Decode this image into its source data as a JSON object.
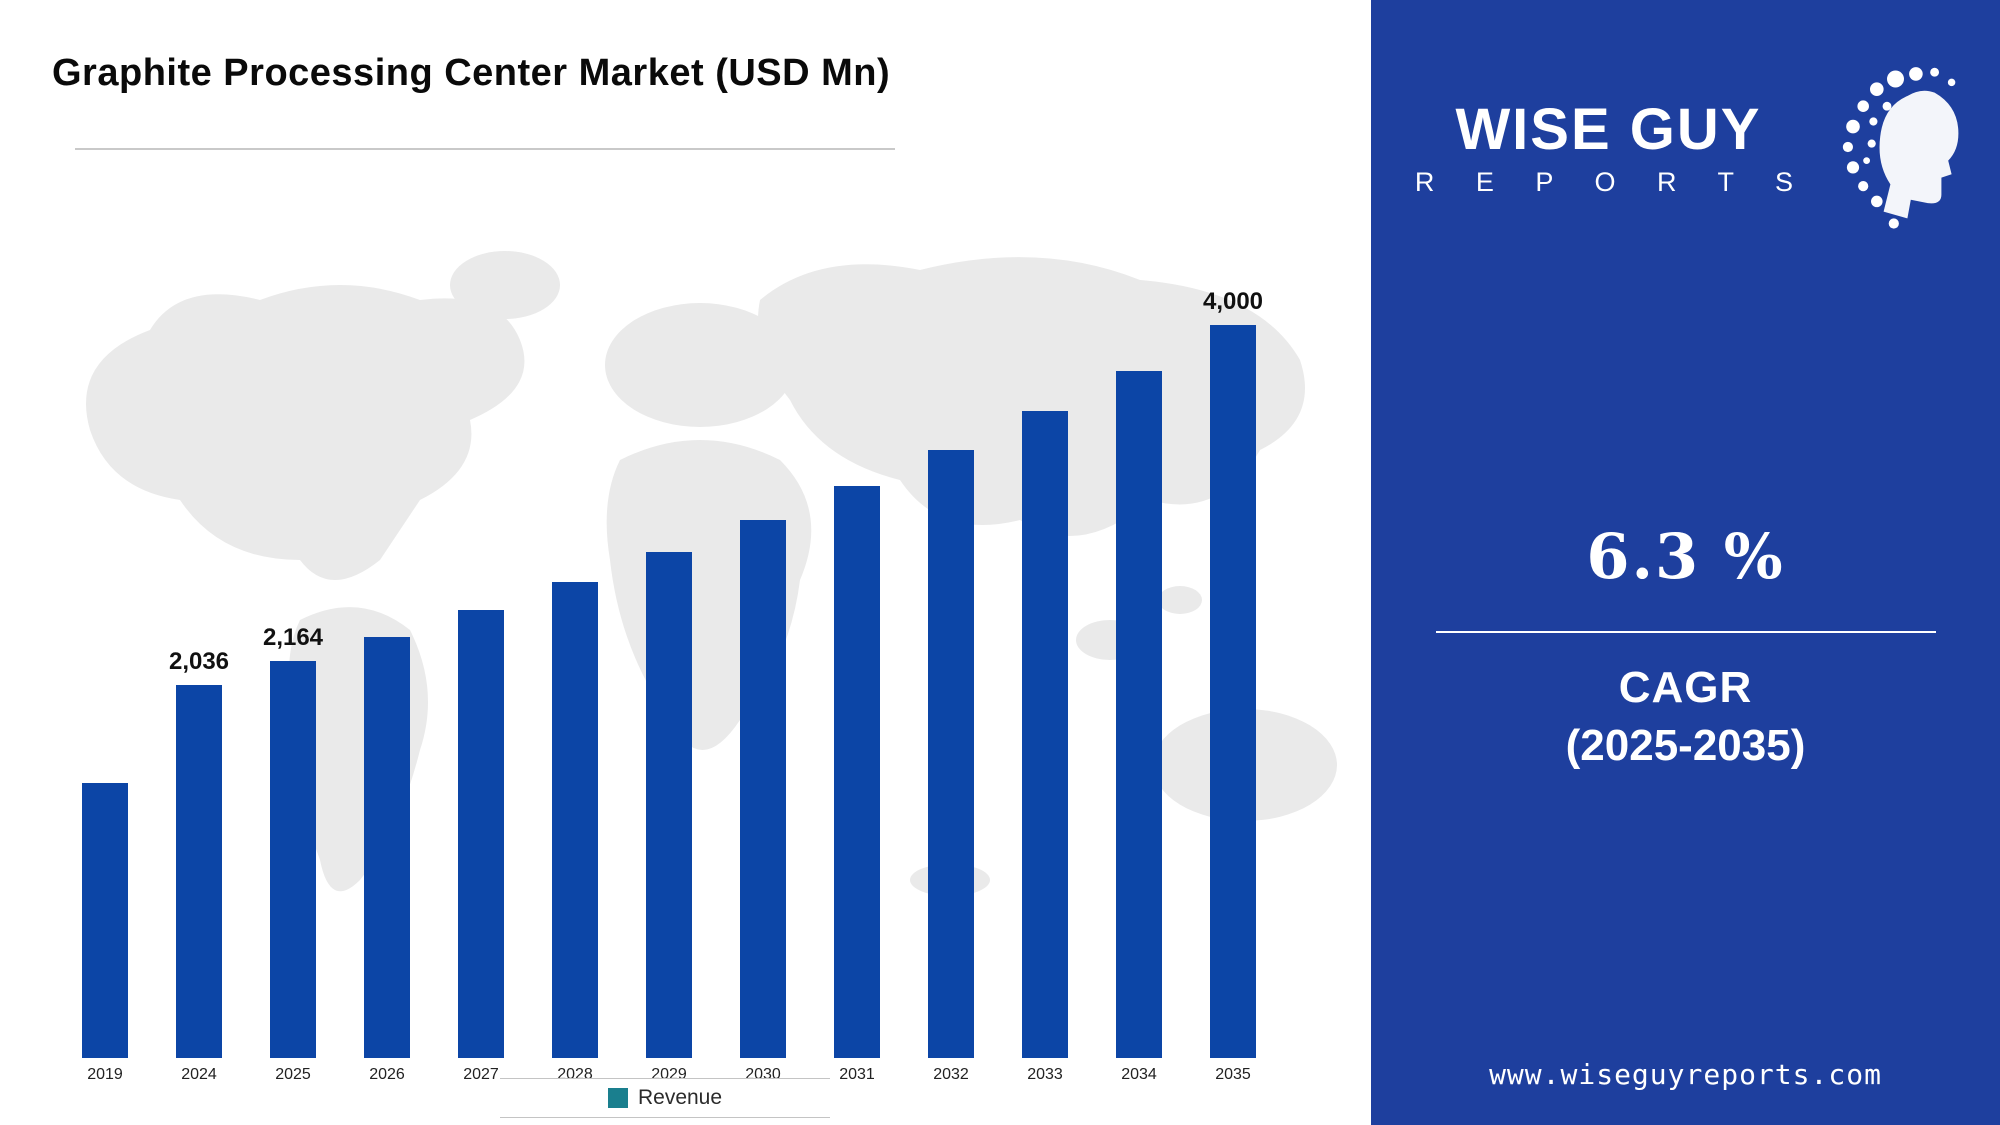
{
  "title": "Graphite Processing Center Market (USD Mn)",
  "chart_data": {
    "type": "bar",
    "title": "Graphite Processing Center Market (USD Mn)",
    "categories": [
      "2019",
      "2024",
      "2025",
      "2026",
      "2027",
      "2028",
      "2029",
      "2030",
      "2031",
      "2032",
      "2033",
      "2034",
      "2035"
    ],
    "values": [
      1500,
      2036,
      2164,
      2300,
      2445,
      2599,
      2763,
      2937,
      3122,
      3319,
      3528,
      3750,
      4000
    ],
    "value_labels": [
      "",
      "2,036",
      "2,164",
      "",
      "",
      "",
      "",
      "",
      "",
      "",
      "",
      "",
      "4,000"
    ],
    "ylim": [
      0,
      4200
    ],
    "grid": false,
    "legend_position": "bottom",
    "series_name": "Revenue",
    "bar_color": "#0c45a6",
    "legend_swatch_color": "#1a7f8e"
  },
  "legend": {
    "revenue_label": "Revenue"
  },
  "sidebar": {
    "bg_color": "#1e3f9e",
    "logo_line1": "WISE GUY",
    "logo_line2": "R E P O R T S",
    "cagr_value": "6.3 %",
    "cagr_label": "CAGR",
    "cagr_period": "(2025-2035)",
    "website": "www.wiseguyreports.com"
  }
}
